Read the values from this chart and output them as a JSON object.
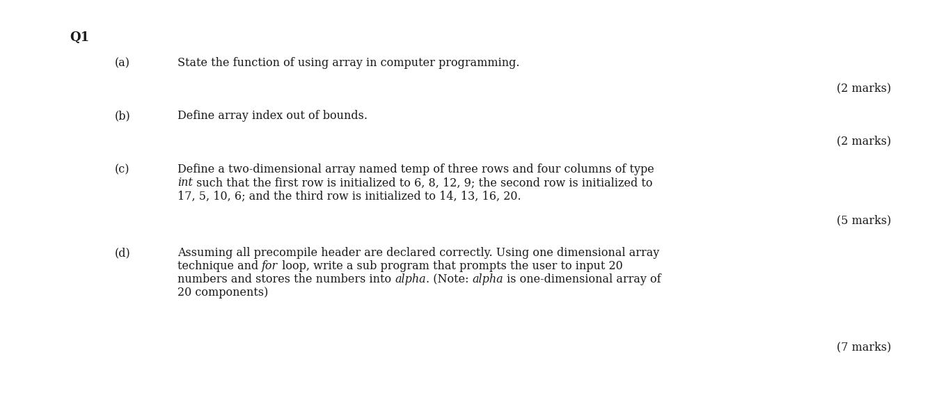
{
  "background_color": "#ffffff",
  "figsize": [
    13.49,
    5.95
  ],
  "dpi": 100,
  "q_label": "Q1",
  "parts": [
    {
      "label": "(a)",
      "lines": [
        [
          {
            "text": "State the function of using array in computer programming.",
            "italic": false
          }
        ]
      ],
      "marks": "(2 marks)"
    },
    {
      "label": "(b)",
      "lines": [
        [
          {
            "text": "Define array index out of bounds.",
            "italic": false
          }
        ]
      ],
      "marks": "(2 marks)"
    },
    {
      "label": "(c)",
      "lines": [
        [
          {
            "text": "Define a two-dimensional array named temp of three rows and four columns of type",
            "italic": false
          }
        ],
        [
          {
            "text": "int",
            "italic": true
          },
          {
            "text": " such that the first row is initialized to 6, 8, 12, 9; the second row is initialized to",
            "italic": false
          }
        ],
        [
          {
            "text": "17, 5, 10, 6; and the third row is initialized to 14, 13, 16, 20.",
            "italic": false
          }
        ]
      ],
      "marks": "(5 marks)"
    },
    {
      "label": "(d)",
      "lines": [
        [
          {
            "text": "Assuming all precompile header are declared correctly. Using one dimensional array",
            "italic": false
          }
        ],
        [
          {
            "text": "technique and ",
            "italic": false
          },
          {
            "text": "for",
            "italic": true
          },
          {
            "text": " loop, write a sub program that prompts the user to input 20",
            "italic": false
          }
        ],
        [
          {
            "text": "numbers and stores the numbers into ",
            "italic": false
          },
          {
            "text": "alpha",
            "italic": true
          },
          {
            "text": ". (Note: ",
            "italic": false
          },
          {
            "text": "alpha",
            "italic": true
          },
          {
            "text": " is one-dimensional array of",
            "italic": false
          }
        ],
        [
          {
            "text": "20 components)",
            "italic": false
          }
        ]
      ],
      "marks": "(7 marks)"
    }
  ],
  "font_size": 11.5,
  "text_color": "#1a1a1a"
}
